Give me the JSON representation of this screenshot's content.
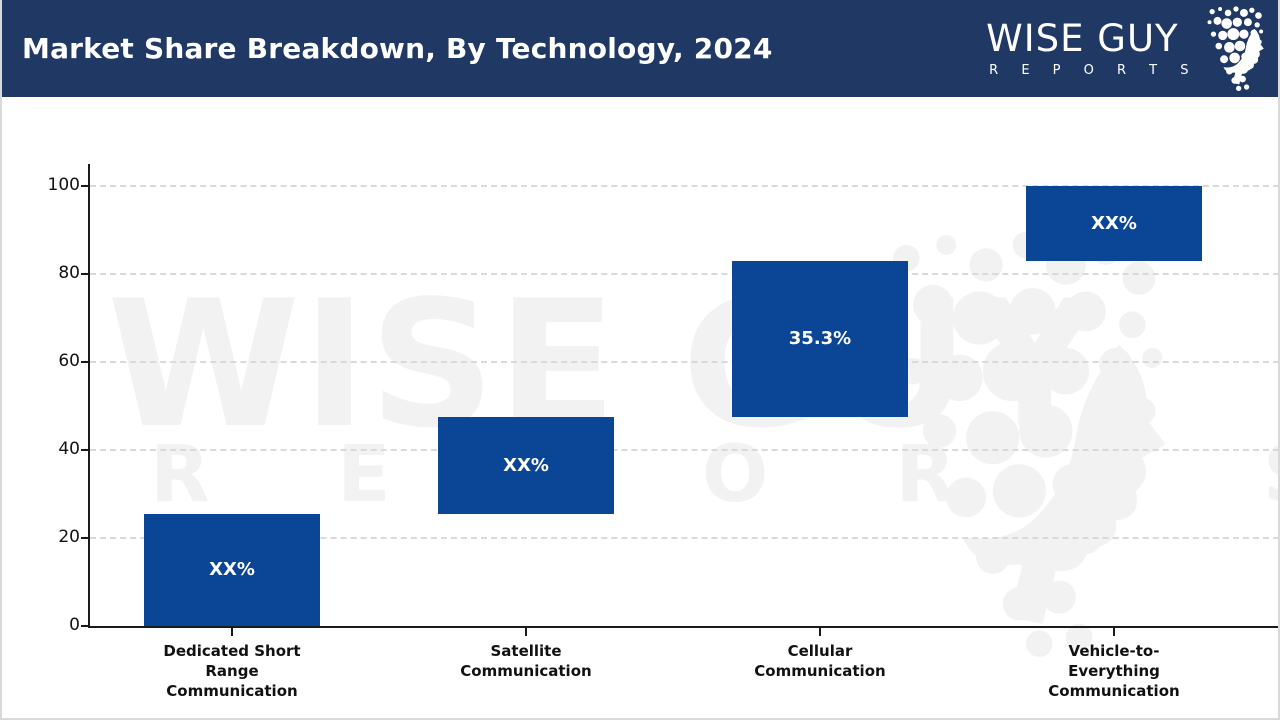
{
  "header": {
    "title": "Market Share Breakdown, By Technology, 2024",
    "logo": {
      "name": "WISE GUY",
      "sub": "R E P O R T S",
      "icon": "dot-head-icon"
    }
  },
  "watermark": {
    "line1": "WISE GUY",
    "line2": "R E P O R T S"
  },
  "colors": {
    "header_bg": "#203864",
    "bar": "#0a4596",
    "grid": "#d9d9d9",
    "axis": "#1a1a1a",
    "watermark": "#f2f2f2",
    "title_text": "#ffffff"
  },
  "chart_data": {
    "type": "bar",
    "variant": "floating-waterfall",
    "title": "Market Share Breakdown, By Technology, 2024",
    "xlabel": "",
    "ylabel": "",
    "ylim": [
      0,
      105
    ],
    "yticks": [
      0,
      20,
      40,
      60,
      80,
      100
    ],
    "grid": true,
    "legend": false,
    "categories": [
      "Dedicated Short\nRange\nCommunication",
      "Satellite\nCommunication",
      "Cellular\nCommunication",
      "Vehicle-to-\nEverything\nCommunication"
    ],
    "bars": [
      {
        "category": "Dedicated Short Range Communication",
        "start": 0,
        "end": 25.5,
        "label": "XX%"
      },
      {
        "category": "Satellite Communication",
        "start": 25.5,
        "end": 47.6,
        "label": "XX%"
      },
      {
        "category": "Cellular Communication",
        "start": 47.6,
        "end": 82.9,
        "label": "35.3%"
      },
      {
        "category": "Vehicle-to-Everything Communication",
        "start": 82.9,
        "end": 100,
        "label": "XX%"
      }
    ]
  }
}
